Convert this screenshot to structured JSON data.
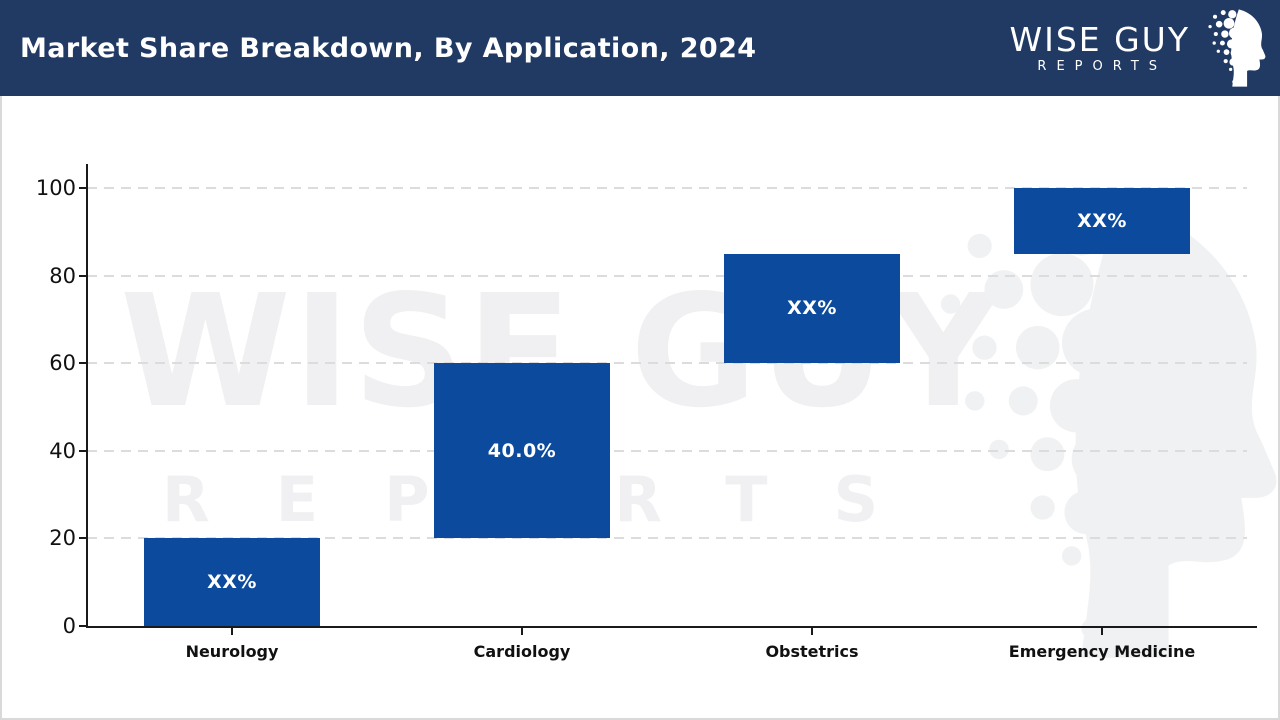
{
  "header": {
    "title": "Market Share Breakdown, By Application, 2024"
  },
  "logo": {
    "wordmark": "WISE GUY",
    "subtitle": "REPORTS"
  },
  "watermark": {
    "line1": "WISE GUY",
    "line2": "REPORTS"
  },
  "chart_data": {
    "type": "bar",
    "subtype": "floating-waterfall",
    "title": "Market Share Breakdown, By Application, 2024",
    "categories": [
      "Neurology",
      "Cardiology",
      "Obstetrics",
      "Emergency Medicine"
    ],
    "segments": [
      {
        "category": "Neurology",
        "start": 0,
        "end": 20,
        "value": 20,
        "label": "XX%"
      },
      {
        "category": "Cardiology",
        "start": 20,
        "end": 60,
        "value": 40,
        "label": "40.0%"
      },
      {
        "category": "Obstetrics",
        "start": 60,
        "end": 85,
        "value": 25,
        "label": "XX%"
      },
      {
        "category": "Emergency Medicine",
        "start": 85,
        "end": 100,
        "value": 15,
        "label": "XX%"
      }
    ],
    "yticks": [
      0,
      20,
      40,
      60,
      80,
      100
    ],
    "ylim": [
      0,
      105
    ],
    "xlabel": "",
    "ylabel": "",
    "grid": {
      "horizontal": true,
      "style": "dashed"
    },
    "legend": "none"
  },
  "colors": {
    "header_bg": "#213a64",
    "bar": "#0c4a9d",
    "bar_label": "#ffffff",
    "axis": "#1a1a1a",
    "grid": "#dcdcdc",
    "watermark": "#f0f0f2",
    "border": "#d9d9d9"
  }
}
